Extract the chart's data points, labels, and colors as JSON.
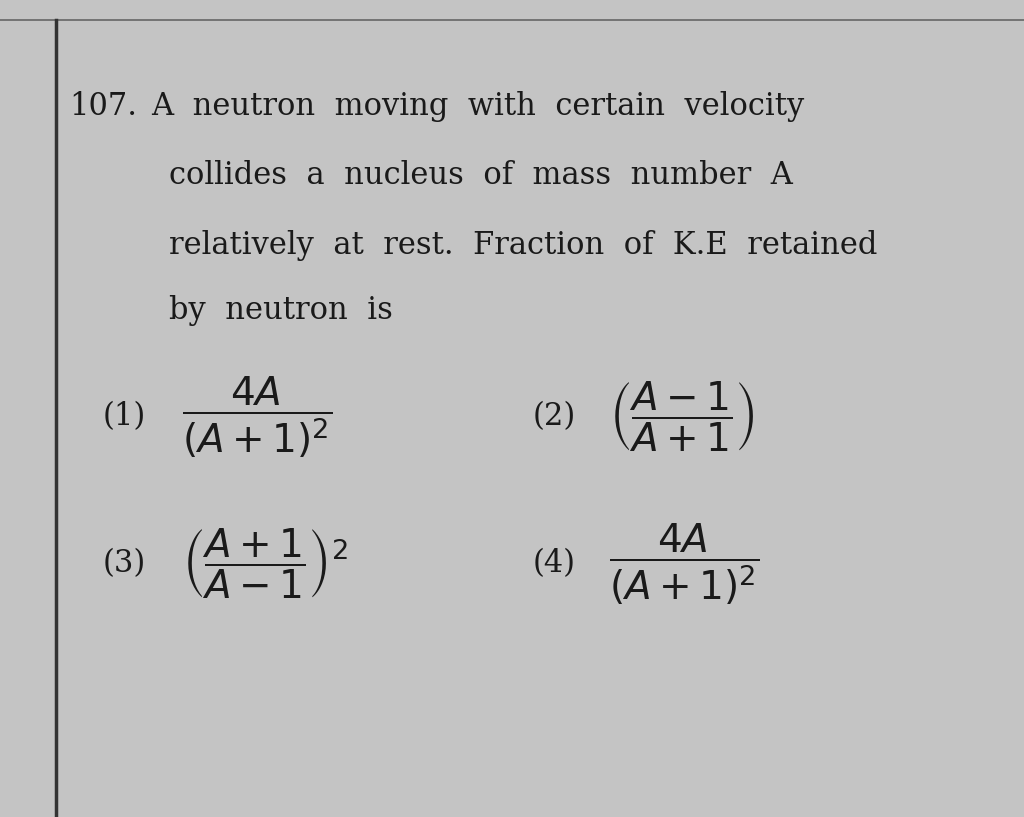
{
  "bg_color": "#c4c4c4",
  "text_color": "#1a1a1a",
  "question_number": "107.",
  "question_text_line1": "A  neutron  moving  with  certain  velocity",
  "question_text_line2": "collides  a  nucleus  of  mass  number  A",
  "question_text_line3": "relatively  at  rest.  Fraction  of  K.E  retained",
  "question_text_line4": "by  neutron  is",
  "option1_label": "(1)",
  "option1_expr": "$\\dfrac{4A}{(A+1)^{2}}$",
  "option2_label": "(2)",
  "option2_expr": "$\\left(\\dfrac{A-1}{A+1}\\right)$",
  "option3_label": "(3)",
  "option3_expr": "$\\left(\\dfrac{A+1}{A-1}\\right)^{2}$",
  "option4_label": "(4)",
  "option4_expr": "$\\dfrac{4A}{(A+1)^{2}}$",
  "figsize": [
    10.24,
    8.17
  ],
  "dpi": 100
}
